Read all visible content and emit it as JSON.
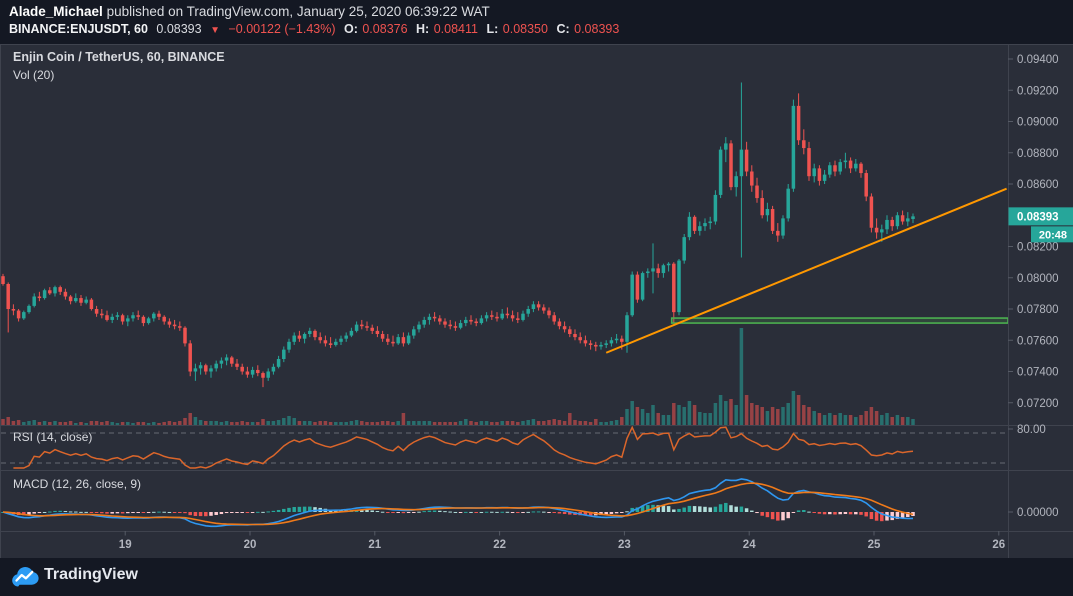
{
  "header": {
    "author": "Alade_Michael",
    "published": "published on TradingView.com, January 25, 2020 06:39:22 WAT",
    "quote": {
      "symbol": "BINANCE:ENJUSDT, 60",
      "last": "0.08393",
      "arrow": "▼",
      "change": "−0.00122 (−1.43%)",
      "ohlc": [
        {
          "label": "O:",
          "value": "0.08376"
        },
        {
          "label": "H:",
          "value": "0.08411"
        },
        {
          "label": "L:",
          "value": "0.08350"
        },
        {
          "label": "C:",
          "value": "0.08393"
        }
      ]
    }
  },
  "chart": {
    "legend": "Enjin Coin / TetherUS, 60, BINANCE",
    "vol_label": "Vol (20)",
    "rsi_label": "RSI (14, close)",
    "macd_label": "MACD (12, 26, close, 9)",
    "colors": {
      "panel_bg": "#2a2e39",
      "border": "#3f434e",
      "axis_text": "#b2b5be",
      "tick": "#565b66",
      "up": "#26a69a",
      "down": "#ef5350",
      "vol_up": "rgba(38,166,154,0.55)",
      "vol_down": "rgba(239,83,80,0.55)",
      "trend": "#ff9800",
      "zone": "#4caf50",
      "zone_fill": "rgba(76,175,80,0.18)",
      "rsi_line": "#db662b",
      "dashed": "#757983",
      "macd_line": "#2f97f0",
      "signal_line": "#ef7a1a",
      "hist_up_grow": "#26a69a",
      "hist_up_fall": "#b2dfdb",
      "hist_dn_fall": "#ef5350",
      "hist_dn_grow": "#ffcdd2",
      "price_label_bg": "#26a69a",
      "price_label_text": "#ffffff"
    }
  },
  "footer": {
    "brand": "TradingView"
  },
  "chart_data": {
    "type": "candlestick",
    "title": "Enjin Coin / TetherUS, 60, BINANCE",
    "exchange": "BINANCE",
    "pair": "ENJ/USDT",
    "interval_minutes": 60,
    "last_price": 0.08393,
    "last_price_label": "0.08393",
    "countdown": "20:48",
    "price_axis": {
      "visible_range": [
        0.0706,
        0.0949
      ],
      "ticks": [
        {
          "label": "0.09400",
          "value": 0.094
        },
        {
          "label": "0.09200",
          "value": 0.092
        },
        {
          "label": "0.09000",
          "value": 0.09
        },
        {
          "label": "0.08800",
          "value": 0.088
        },
        {
          "label": "0.08600",
          "value": 0.086
        },
        {
          "label": "0.08200",
          "value": 0.082
        },
        {
          "label": "0.08000",
          "value": 0.08
        },
        {
          "label": "0.07800",
          "value": 0.078
        },
        {
          "label": "0.07600",
          "value": 0.076
        },
        {
          "label": "0.07400",
          "value": 0.074
        },
        {
          "label": "0.07200",
          "value": 0.072
        }
      ]
    },
    "time_axis": {
      "ticks": [
        {
          "label": "19",
          "bar": 23.5
        },
        {
          "label": "20",
          "bar": 47.5
        },
        {
          "label": "21",
          "bar": 71.5
        },
        {
          "label": "22",
          "bar": 95.5
        },
        {
          "label": "23",
          "bar": 119.5
        },
        {
          "label": "24",
          "bar": 143.5
        },
        {
          "label": "25",
          "bar": 167.5
        },
        {
          "label": "26",
          "bar": 191.5
        }
      ]
    },
    "drawings": {
      "trendline": {
        "type": "trend-line",
        "start": {
          "bar": 116,
          "price": 0.0752
        },
        "end": {
          "bar": 193,
          "price": 0.0857
        }
      },
      "support_zone": {
        "type": "rectangle",
        "from_bar": 128.6,
        "to_bar": 193.3,
        "price_top": 0.07742,
        "price_bottom": 0.0771
      }
    },
    "indicators": {
      "rsi": {
        "label": "RSI (14, close)",
        "period": 14,
        "source": "close",
        "band_upper": 70,
        "band_lower": 30,
        "axis_label": "80.00"
      },
      "macd": {
        "label": "MACD (12, 26, close, 9)",
        "fast": 12,
        "slow": 26,
        "source": "close",
        "signal": 9,
        "axis_label": "0.00000"
      }
    },
    "price_divisor": 100000,
    "ohlcv_format": [
      "open",
      "high",
      "low",
      "close",
      "volume_rel_px"
    ],
    "candles": [
      [
        8010,
        8025,
        7950,
        7960,
        6
      ],
      [
        7960,
        7970,
        7650,
        7800,
        8
      ],
      [
        7800,
        7830,
        7760,
        7790,
        4
      ],
      [
        7790,
        7800,
        7720,
        7740,
        5
      ],
      [
        7740,
        7790,
        7730,
        7780,
        3
      ],
      [
        7780,
        7830,
        7770,
        7820,
        4
      ],
      [
        7820,
        7900,
        7810,
        7880,
        5
      ],
      [
        7880,
        7910,
        7850,
        7870,
        3
      ],
      [
        7870,
        7930,
        7860,
        7920,
        4
      ],
      [
        7920,
        7940,
        7890,
        7900,
        3
      ],
      [
        7900,
        7950,
        7880,
        7940,
        4
      ],
      [
        7940,
        7950,
        7890,
        7910,
        3
      ],
      [
        7910,
        7930,
        7860,
        7880,
        3
      ],
      [
        7880,
        7890,
        7830,
        7850,
        4
      ],
      [
        7850,
        7900,
        7840,
        7870,
        2
      ],
      [
        7870,
        7890,
        7820,
        7840,
        3
      ],
      [
        7840,
        7880,
        7830,
        7860,
        2
      ],
      [
        7860,
        7870,
        7790,
        7800,
        4
      ],
      [
        7800,
        7820,
        7750,
        7770,
        4
      ],
      [
        7770,
        7800,
        7740,
        7760,
        3
      ],
      [
        7760,
        7790,
        7720,
        7730,
        4
      ],
      [
        7730,
        7770,
        7710,
        7750,
        3
      ],
      [
        7750,
        7780,
        7730,
        7760,
        2
      ],
      [
        7760,
        7770,
        7700,
        7720,
        3
      ],
      [
        7720,
        7760,
        7690,
        7740,
        3
      ],
      [
        7740,
        7780,
        7720,
        7760,
        2
      ],
      [
        7760,
        7790,
        7730,
        7750,
        3
      ],
      [
        7750,
        7760,
        7690,
        7710,
        3
      ],
      [
        7710,
        7750,
        7700,
        7740,
        2
      ],
      [
        7740,
        7780,
        7720,
        7770,
        3
      ],
      [
        7770,
        7790,
        7730,
        7750,
        2
      ],
      [
        7750,
        7760,
        7700,
        7720,
        3
      ],
      [
        7720,
        7740,
        7680,
        7700,
        4
      ],
      [
        7700,
        7730,
        7670,
        7690,
        3
      ],
      [
        7690,
        7720,
        7660,
        7680,
        4
      ],
      [
        7680,
        7690,
        7560,
        7580,
        7
      ],
      [
        7580,
        7600,
        7370,
        7400,
        12
      ],
      [
        7400,
        7450,
        7340,
        7420,
        8
      ],
      [
        7420,
        7460,
        7380,
        7440,
        5
      ],
      [
        7440,
        7450,
        7380,
        7400,
        4
      ],
      [
        7400,
        7440,
        7360,
        7420,
        4
      ],
      [
        7420,
        7470,
        7400,
        7450,
        4
      ],
      [
        7450,
        7490,
        7420,
        7470,
        3
      ],
      [
        7470,
        7510,
        7440,
        7490,
        4
      ],
      [
        7490,
        7500,
        7430,
        7450,
        3
      ],
      [
        7450,
        7480,
        7410,
        7430,
        3
      ],
      [
        7430,
        7450,
        7380,
        7400,
        4
      ],
      [
        7400,
        7430,
        7360,
        7380,
        3
      ],
      [
        7380,
        7430,
        7360,
        7410,
        3
      ],
      [
        7410,
        7440,
        7370,
        7390,
        3
      ],
      [
        7390,
        7400,
        7300,
        7360,
        6
      ],
      [
        7360,
        7420,
        7340,
        7400,
        4
      ],
      [
        7400,
        7450,
        7380,
        7430,
        4
      ],
      [
        7430,
        7500,
        7420,
        7480,
        5
      ],
      [
        7480,
        7560,
        7460,
        7540,
        7
      ],
      [
        7540,
        7610,
        7520,
        7590,
        9
      ],
      [
        7590,
        7650,
        7570,
        7630,
        7
      ],
      [
        7630,
        7660,
        7590,
        7610,
        4
      ],
      [
        7610,
        7650,
        7580,
        7640,
        4
      ],
      [
        7640,
        7680,
        7620,
        7660,
        4
      ],
      [
        7660,
        7670,
        7600,
        7620,
        3
      ],
      [
        7620,
        7650,
        7580,
        7600,
        4
      ],
      [
        7600,
        7630,
        7560,
        7580,
        4
      ],
      [
        7580,
        7620,
        7550,
        7570,
        3
      ],
      [
        7570,
        7610,
        7560,
        7590,
        3
      ],
      [
        7590,
        7630,
        7570,
        7610,
        3
      ],
      [
        7610,
        7650,
        7590,
        7630,
        3
      ],
      [
        7630,
        7680,
        7620,
        7660,
        4
      ],
      [
        7660,
        7720,
        7650,
        7700,
        5
      ],
      [
        7700,
        7730,
        7670,
        7690,
        4
      ],
      [
        7690,
        7720,
        7660,
        7680,
        3
      ],
      [
        7680,
        7700,
        7640,
        7660,
        3
      ],
      [
        7660,
        7690,
        7620,
        7640,
        3
      ],
      [
        7640,
        7660,
        7590,
        7610,
        4
      ],
      [
        7610,
        7640,
        7570,
        7590,
        4
      ],
      [
        7590,
        7630,
        7560,
        7580,
        3
      ],
      [
        7580,
        7640,
        7570,
        7620,
        4
      ],
      [
        7620,
        7650,
        7560,
        7580,
        12
      ],
      [
        7580,
        7650,
        7570,
        7630,
        4
      ],
      [
        7630,
        7690,
        7610,
        7670,
        4
      ],
      [
        7670,
        7720,
        7650,
        7700,
        4
      ],
      [
        7700,
        7750,
        7680,
        7730,
        4
      ],
      [
        7730,
        7770,
        7700,
        7750,
        4
      ],
      [
        7750,
        7780,
        7720,
        7740,
        3
      ],
      [
        7740,
        7760,
        7700,
        7720,
        3
      ],
      [
        7720,
        7740,
        7680,
        7700,
        3
      ],
      [
        7700,
        7730,
        7670,
        7690,
        3
      ],
      [
        7690,
        7720,
        7660,
        7680,
        3
      ],
      [
        7680,
        7730,
        7670,
        7710,
        4
      ],
      [
        7710,
        7750,
        7690,
        7730,
        6
      ],
      [
        7730,
        7760,
        7700,
        7720,
        4
      ],
      [
        7720,
        7740,
        7690,
        7710,
        3
      ],
      [
        7710,
        7760,
        7700,
        7740,
        4
      ],
      [
        7740,
        7780,
        7720,
        7760,
        4
      ],
      [
        7760,
        7790,
        7730,
        7750,
        3
      ],
      [
        7750,
        7780,
        7720,
        7740,
        3
      ],
      [
        7740,
        7800,
        7730,
        7770,
        4
      ],
      [
        7770,
        7810,
        7740,
        7760,
        4
      ],
      [
        7760,
        7790,
        7720,
        7740,
        4
      ],
      [
        7740,
        7780,
        7710,
        7730,
        3
      ],
      [
        7730,
        7790,
        7720,
        7770,
        4
      ],
      [
        7770,
        7820,
        7750,
        7800,
        5
      ],
      [
        7800,
        7850,
        7780,
        7830,
        6
      ],
      [
        7830,
        7850,
        7790,
        7810,
        4
      ],
      [
        7810,
        7830,
        7770,
        7790,
        4
      ],
      [
        7790,
        7810,
        7740,
        7760,
        5
      ],
      [
        7760,
        7780,
        7700,
        7720,
        6
      ],
      [
        7720,
        7740,
        7670,
        7690,
        5
      ],
      [
        7690,
        7720,
        7650,
        7670,
        4
      ],
      [
        7670,
        7690,
        7620,
        7640,
        12
      ],
      [
        7640,
        7670,
        7600,
        7620,
        5
      ],
      [
        7620,
        7650,
        7580,
        7600,
        4
      ],
      [
        7600,
        7630,
        7560,
        7580,
        4
      ],
      [
        7580,
        7600,
        7540,
        7570,
        3
      ],
      [
        7570,
        7590,
        7530,
        7560,
        6
      ],
      [
        7560,
        7590,
        7540,
        7570,
        3
      ],
      [
        7570,
        7600,
        7550,
        7580,
        3
      ],
      [
        7580,
        7620,
        7560,
        7600,
        4
      ],
      [
        7600,
        7640,
        7580,
        7610,
        5
      ],
      [
        7610,
        7630,
        7540,
        7590,
        8
      ],
      [
        7590,
        7780,
        7520,
        7760,
        16
      ],
      [
        7760,
        8040,
        7750,
        8020,
        24
      ],
      [
        8020,
        8040,
        7840,
        7860,
        18
      ],
      [
        7860,
        8040,
        7850,
        8030,
        16
      ],
      [
        8030,
        8060,
        8000,
        8040,
        12
      ],
      [
        8040,
        8220,
        7900,
        8060,
        20
      ],
      [
        8060,
        8090,
        8000,
        8030,
        12
      ],
      [
        8030,
        8090,
        8000,
        8080,
        10
      ],
      [
        8080,
        8100,
        8040,
        8090,
        10
      ],
      [
        8090,
        8100,
        7710,
        7780,
        22
      ],
      [
        7780,
        8120,
        7760,
        8110,
        20
      ],
      [
        8110,
        8280,
        8090,
        8260,
        18
      ],
      [
        8260,
        8420,
        8240,
        8390,
        24
      ],
      [
        8390,
        8400,
        8280,
        8300,
        20
      ],
      [
        8300,
        8360,
        8270,
        8330,
        13
      ],
      [
        8330,
        8380,
        8300,
        8350,
        12
      ],
      [
        8350,
        8390,
        8310,
        8360,
        12
      ],
      [
        8360,
        8560,
        8340,
        8530,
        22
      ],
      [
        8530,
        8840,
        8510,
        8820,
        30
      ],
      [
        8820,
        8900,
        8740,
        8860,
        24
      ],
      [
        8860,
        8880,
        8560,
        8580,
        26
      ],
      [
        8580,
        8680,
        8520,
        8650,
        20
      ],
      [
        8650,
        9250,
        8130,
        8820,
        97
      ],
      [
        8820,
        8870,
        8650,
        8680,
        30
      ],
      [
        8680,
        8720,
        8550,
        8590,
        22
      ],
      [
        8590,
        8640,
        8480,
        8510,
        20
      ],
      [
        8510,
        8560,
        8380,
        8400,
        18
      ],
      [
        8400,
        8480,
        8360,
        8440,
        14
      ],
      [
        8440,
        8460,
        8280,
        8300,
        18
      ],
      [
        8300,
        8350,
        8230,
        8270,
        16
      ],
      [
        8270,
        8400,
        8250,
        8380,
        18
      ],
      [
        8380,
        8600,
        8360,
        8570,
        22
      ],
      [
        8570,
        9140,
        8550,
        9100,
        34
      ],
      [
        9100,
        9180,
        8850,
        8880,
        30
      ],
      [
        8880,
        8950,
        8790,
        8830,
        20
      ],
      [
        8830,
        8870,
        8620,
        8650,
        18
      ],
      [
        8650,
        8730,
        8610,
        8700,
        14
      ],
      [
        8700,
        8720,
        8590,
        8620,
        12
      ],
      [
        8620,
        8690,
        8600,
        8660,
        10
      ],
      [
        8660,
        8740,
        8640,
        8720,
        12
      ],
      [
        8720,
        8750,
        8650,
        8680,
        10
      ],
      [
        8680,
        8760,
        8660,
        8740,
        12
      ],
      [
        8740,
        8800,
        8700,
        8750,
        10
      ],
      [
        8750,
        8770,
        8670,
        8700,
        10
      ],
      [
        8700,
        8760,
        8680,
        8730,
        8
      ],
      [
        8730,
        8740,
        8640,
        8670,
        10
      ],
      [
        8670,
        8690,
        8490,
        8520,
        14
      ],
      [
        8520,
        8540,
        8290,
        8320,
        18
      ],
      [
        8320,
        8380,
        8250,
        8290,
        14
      ],
      [
        8290,
        8340,
        8230,
        8310,
        10
      ],
      [
        8310,
        8400,
        8280,
        8370,
        12
      ],
      [
        8370,
        8390,
        8300,
        8330,
        8
      ],
      [
        8330,
        8420,
        8310,
        8400,
        10
      ],
      [
        8400,
        8430,
        8340,
        8360,
        8
      ],
      [
        8360,
        8420,
        8330,
        8380,
        8
      ],
      [
        8376,
        8411,
        8350,
        8393,
        6
      ]
    ]
  }
}
